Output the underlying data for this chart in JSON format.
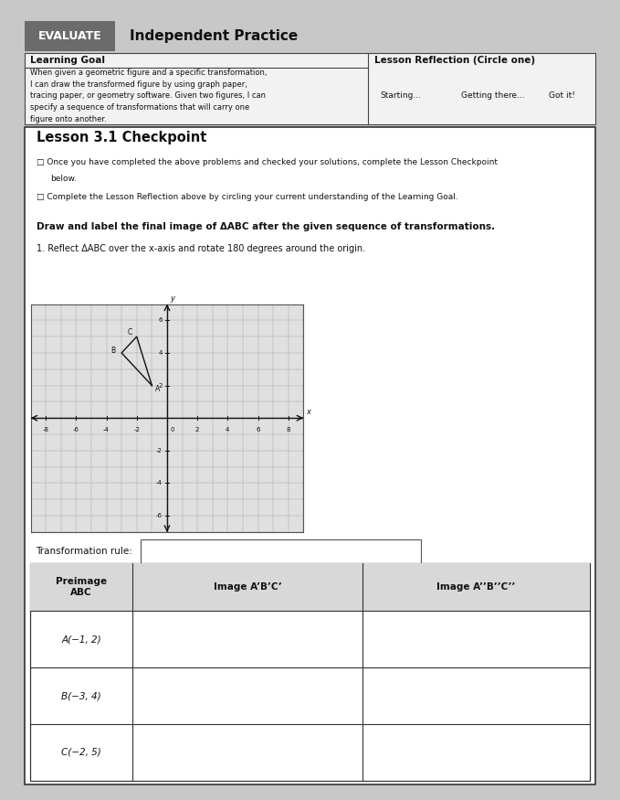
{
  "page_bg": "#c8c8c8",
  "content_bg": "#f2f2f2",
  "header_bg": "#6b6b6b",
  "header_text": "EVALUATE",
  "header_text_color": "#ffffff",
  "title_text": "Independent Practice",
  "learning_goal_label": "Learning Goal",
  "learning_goal_text_line1": "When given a geometric figure and a specific transformation,",
  "learning_goal_text_line2": "I can draw the transformed figure by using graph paper,",
  "learning_goal_text_line3": "tracing paper, or geometry software. Given two figures, I can",
  "learning_goal_text_line4": "specify a sequence of transformations that will carry one",
  "learning_goal_text_line5": "figure onto another.",
  "lesson_reflection_label": "Lesson Reflection (Circle one)",
  "reflection_options": [
    "Starting...",
    "Getting there...",
    "Got it!"
  ],
  "checkpoint_title": "Lesson 3.1 Checkpoint",
  "bullet1_line1": "Once you have completed the above problems and checked your solutions, complete the Lesson Checkpoint",
  "bullet1_line2": "below.",
  "bullet2": "Complete the Lesson Reflection above by circling your current understanding of the Learning Goal.",
  "draw_instruction": "Draw and label the final image of ΔABC after the given sequence of transformations.",
  "problem_text": "1. Reflect ΔABC over the x-axis and rotate 180 degrees around the origin.",
  "triangle_A": [
    -1,
    2
  ],
  "triangle_B": [
    -3,
    4
  ],
  "triangle_C": [
    -2,
    5
  ],
  "axis_xlim": [
    -9,
    9
  ],
  "axis_ylim": [
    -7,
    7
  ],
  "axis_xticks": [
    -8,
    -6,
    -4,
    -2,
    2,
    4,
    6,
    8
  ],
  "axis_yticks": [
    -6,
    -4,
    -2,
    2,
    4,
    6
  ],
  "transformation_rule_label": "Transformation rule:",
  "table_col0_header": "Preimage\nABC",
  "table_col1_header": "Image A’B’C’",
  "table_col2_header": "Image A’’B’’C’’",
  "table_rows": [
    [
      "A(−1, 2)",
      "",
      ""
    ],
    [
      "B(−3, 4)",
      "",
      ""
    ],
    [
      "C(−2, 5)",
      "",
      ""
    ]
  ],
  "grid_color": "#b8b8b8",
  "axis_color": "#111111",
  "triangle_color": "#111111"
}
